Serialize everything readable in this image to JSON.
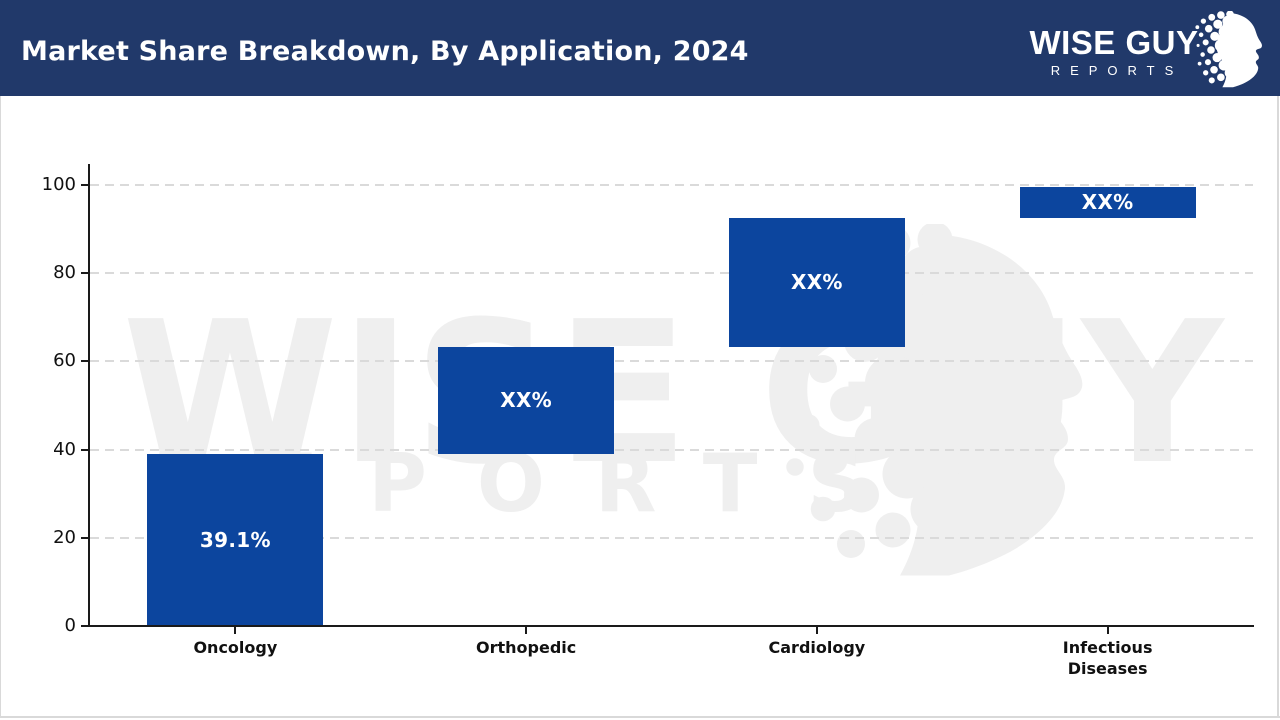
{
  "header": {
    "title": "Market Share Breakdown, By Application, 2024",
    "logo": {
      "line1": "WISE GUY",
      "line2": "REPORTS"
    }
  },
  "watermark": {
    "line1": "WISE GUY",
    "line2": "REPORTS"
  },
  "colors": {
    "header_bg": "#21396a",
    "bar": "#0c459e",
    "bar_label": "#ffffff",
    "watermark": "#efefef",
    "gridline": "#dadada",
    "axis": "#1a1a1a"
  },
  "chart_data": {
    "type": "bar",
    "subtype": "waterfall",
    "title": "Market Share Breakdown, By Application, 2024",
    "categories": [
      "Oncology",
      "Orthopedic",
      "Cardiology",
      "Infectious Diseases"
    ],
    "segments": [
      {
        "category": "Oncology",
        "start": 0,
        "end": 39.1,
        "label": "39.1%"
      },
      {
        "category": "Orthopedic",
        "start": 39.1,
        "end": 63.3,
        "label": "XX%"
      },
      {
        "category": "Cardiology",
        "start": 63.3,
        "end": 92.5,
        "label": "XX%"
      },
      {
        "category": "Infectious Diseases",
        "start": 92.5,
        "end": 99.6,
        "label": "XX%"
      }
    ],
    "xlabel": "",
    "ylabel": "",
    "ylim": [
      0,
      100
    ],
    "yticks": [
      0,
      20,
      40,
      60,
      80,
      100
    ],
    "grid": "horizontal dashed",
    "legend": "none"
  }
}
